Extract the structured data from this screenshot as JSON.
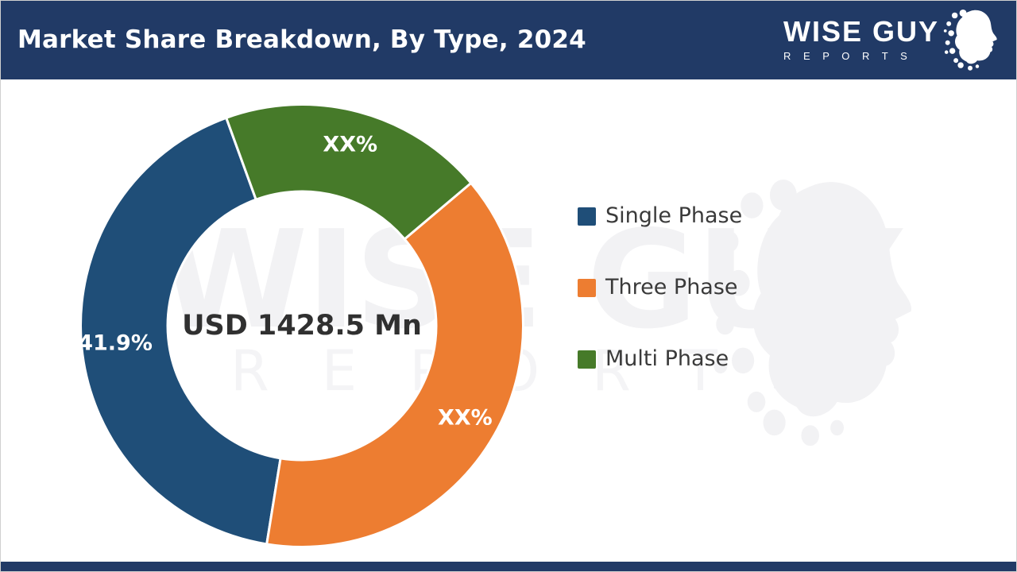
{
  "theme": {
    "navy": "#213a66",
    "page_border": "#d0d0d0",
    "watermark_color": "#f2f2f4",
    "text_dark": "#303030",
    "legend_text": "#3a3a3a"
  },
  "header": {
    "title": "Market Share Breakdown, By Type, 2024",
    "logo": {
      "brand_line1": "WISE GUY",
      "brand_line2": "R E P O R T S"
    }
  },
  "watermark": {
    "line1": "WISE GUY",
    "line2": "R E P O R T S"
  },
  "chart_data": {
    "type": "pie",
    "subtype": "donut",
    "center_label": "USD 1428.5 Mn",
    "start_angle": 110,
    "direction": "counterclockwise",
    "inner_radius_ratio": 0.605,
    "legend_position": "right",
    "series": [
      {
        "name": "Single Phase",
        "value": 41.9,
        "display_label": "41.9%",
        "color": "#1f4e78"
      },
      {
        "name": "Three Phase",
        "value": 38.7,
        "display_label": "XX%",
        "color": "#ed7d31"
      },
      {
        "name": "Multi Phase",
        "value": 19.4,
        "display_label": "XX%",
        "color": "#467a29"
      }
    ]
  }
}
